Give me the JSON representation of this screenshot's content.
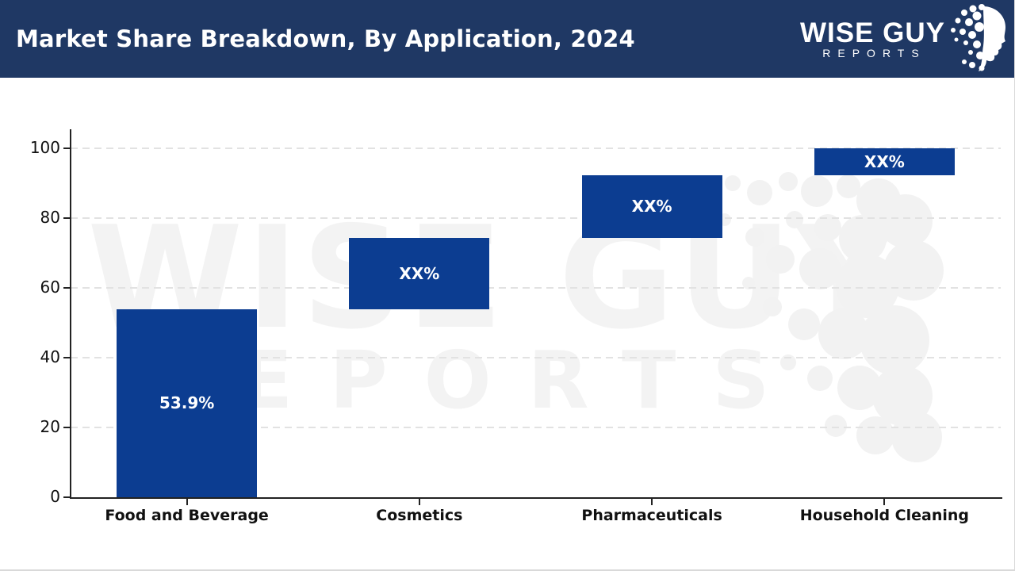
{
  "header": {
    "title": "Market Share Breakdown, By Application, 2024",
    "bg_color": "#1f3864",
    "logo": {
      "line1": "WISE GUY",
      "line2": "REPORTS"
    }
  },
  "watermark": {
    "line1": "WISE GUY",
    "line2": "REPORTS"
  },
  "chart_data": {
    "type": "bar",
    "subtype": "waterfall-floating-bars",
    "title": "Market Share Breakdown, By Application, 2024",
    "categories": [
      "Food and Beverage",
      "Cosmetics",
      "Pharmaceuticals",
      "Household Cleaning"
    ],
    "segments": [
      {
        "category": "Food and Beverage",
        "start": 0,
        "end": 53.9,
        "label": "53.9%"
      },
      {
        "category": "Cosmetics",
        "start": 53.9,
        "end": 74.3,
        "label": "XX%"
      },
      {
        "category": "Pharmaceuticals",
        "start": 74.3,
        "end": 92.3,
        "label": "XX%"
      },
      {
        "category": "Household Cleaning",
        "start": 92.3,
        "end": 100,
        "label": "XX%"
      }
    ],
    "xlabel": "",
    "ylabel": "",
    "ylim": [
      0,
      105
    ],
    "yticks": [
      0,
      20,
      40,
      60,
      80,
      100
    ],
    "grid": "horizontal-dashed",
    "legend": "none",
    "bar_color": "#0c3d91",
    "bar_label_color": "#ffffff"
  }
}
